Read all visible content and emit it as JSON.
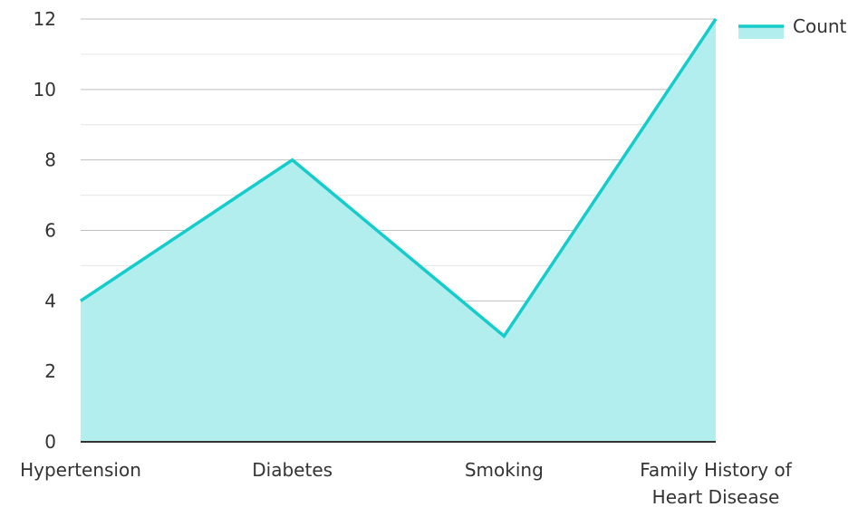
{
  "chart_data": {
    "type": "area",
    "categories": [
      "Hypertension",
      "Diabetes",
      "Smoking",
      "Family History of Heart Disease"
    ],
    "category_lines": [
      [
        "Hypertension"
      ],
      [
        "Diabetes"
      ],
      [
        "Smoking"
      ],
      [
        "Family History of",
        "Heart Disease"
      ]
    ],
    "series": [
      {
        "name": "Count",
        "values": [
          4,
          8,
          3,
          12
        ],
        "color": "#14cccc",
        "fill": "#b3eeee"
      }
    ],
    "y_ticks": [
      0,
      2,
      4,
      6,
      8,
      10,
      12
    ],
    "ylim": [
      0,
      12
    ],
    "grid": true,
    "legend_position": "top-right",
    "colors": {
      "major_grid": "#bfbfbf",
      "minor_grid": "#e6e6e6",
      "axis": "#333333",
      "text": "#333333"
    }
  }
}
